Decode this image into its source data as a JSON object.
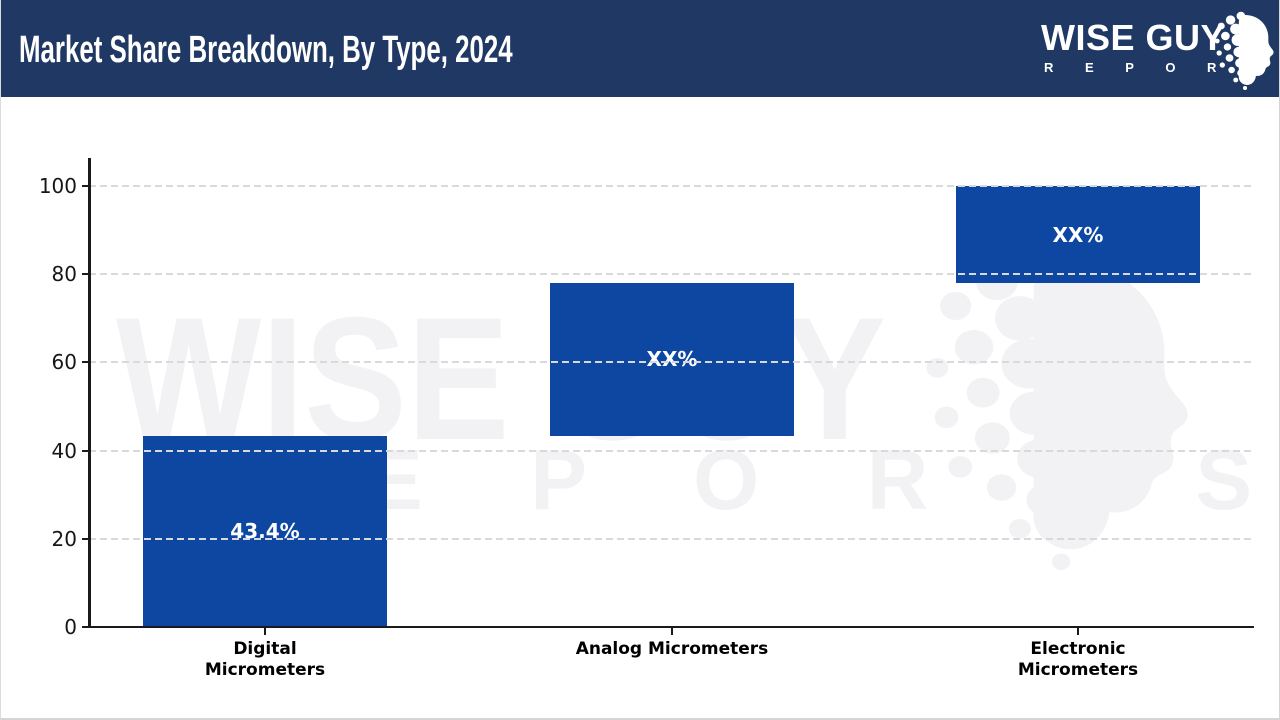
{
  "header": {
    "title": "Market Share Breakdown, By Type, 2024",
    "logo": {
      "line1": "WISE GUY",
      "line2": "R E P O R T S"
    }
  },
  "watermark": {
    "line1": "WISE GUY",
    "line2": "R E P O R T S"
  },
  "chart_data": {
    "type": "bar",
    "variant": "floating-segment-breakdown",
    "title": "Market Share Breakdown, By Type, 2024",
    "categories": [
      "Digital Micrometers",
      "Analog Micrometers",
      "Electronic Micrometers"
    ],
    "category_lines": [
      [
        "Digital",
        "Micrometers"
      ],
      [
        "Analog Micrometers"
      ],
      [
        "Electronic",
        "Micrometers"
      ]
    ],
    "bars": [
      {
        "category": "Digital Micrometers",
        "start": 0,
        "end": 43.4,
        "value_label": "43.4%"
      },
      {
        "category": "Analog Micrometers",
        "start": 43.4,
        "end": 78,
        "value_label": "XX%"
      },
      {
        "category": "Electronic Micrometers",
        "start": 78,
        "end": 100,
        "value_label": "XX%"
      }
    ],
    "xlabel": "",
    "ylabel": "",
    "ylim": [
      0,
      100
    ],
    "yticks": [
      0,
      20,
      40,
      60,
      80,
      100
    ],
    "grid": {
      "horizontal": true,
      "style": "dashed",
      "color": "#d9d9d9"
    },
    "legend": "none",
    "bar_color": "#0d47a1",
    "value_label_color": "#ffffff"
  },
  "colors": {
    "header_bg": "#1f3864",
    "bar": "#0d47a1",
    "axis": "#1a1a1a",
    "watermark": "#f2f2f4"
  }
}
